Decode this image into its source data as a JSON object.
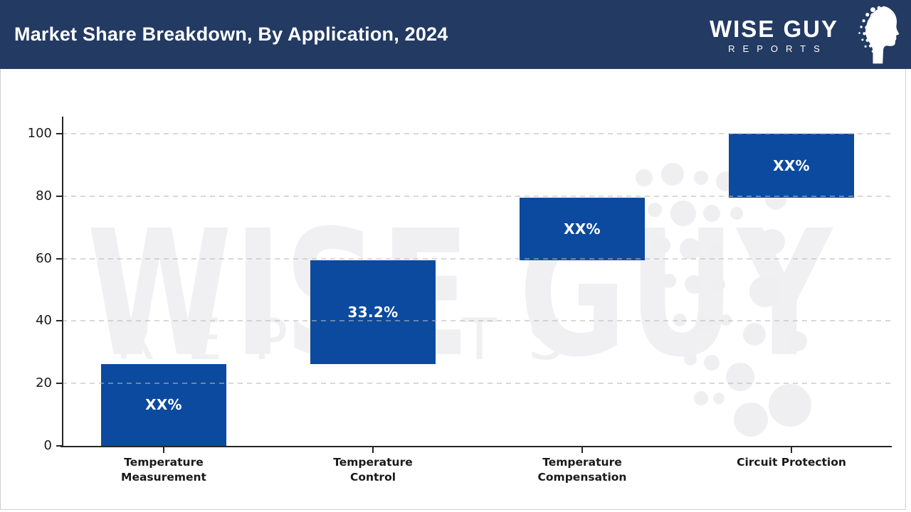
{
  "header": {
    "title": "Market Share Breakdown, By Application, 2024",
    "logo": {
      "line1": "WISE GUY",
      "line2": "REPORTS"
    }
  },
  "watermark": {
    "line1": "WISE GUY",
    "line2": "REPORTS"
  },
  "chart_data": {
    "type": "bar",
    "subtype": "waterfall",
    "title": "Market Share Breakdown, By Application, 2024",
    "categories": [
      "Temperature\nMeasurement",
      "Temperature\nControl",
      "Temperature\nCompensation",
      "Circuit Protection"
    ],
    "series": [
      {
        "name": "Temperature Measurement",
        "start": 0,
        "end": 26.2,
        "value": 26.2,
        "label": "XX%"
      },
      {
        "name": "Temperature Control",
        "start": 26.2,
        "end": 59.4,
        "value": 33.2,
        "label": "33.2%"
      },
      {
        "name": "Temperature Compensation",
        "start": 59.4,
        "end": 79.4,
        "value": 20.0,
        "label": "XX%"
      },
      {
        "name": "Circuit Protection",
        "start": 79.4,
        "end": 100,
        "value": 20.6,
        "label": "XX%"
      }
    ],
    "xlabel": "",
    "ylabel": "",
    "ylim": [
      0,
      105.5
    ],
    "yticks": [
      0,
      20,
      40,
      60,
      80,
      100
    ],
    "grid": "horizontal-dashed",
    "legend": "none",
    "colors": {
      "bar": "#0B4A9E",
      "axis": "#262626",
      "gridline": "#DCDCDC",
      "label_text": "#FFFFFF",
      "tick_text": "#1A1A1A",
      "header_bg": "#233A62",
      "watermark": "#F0F0F2"
    }
  }
}
